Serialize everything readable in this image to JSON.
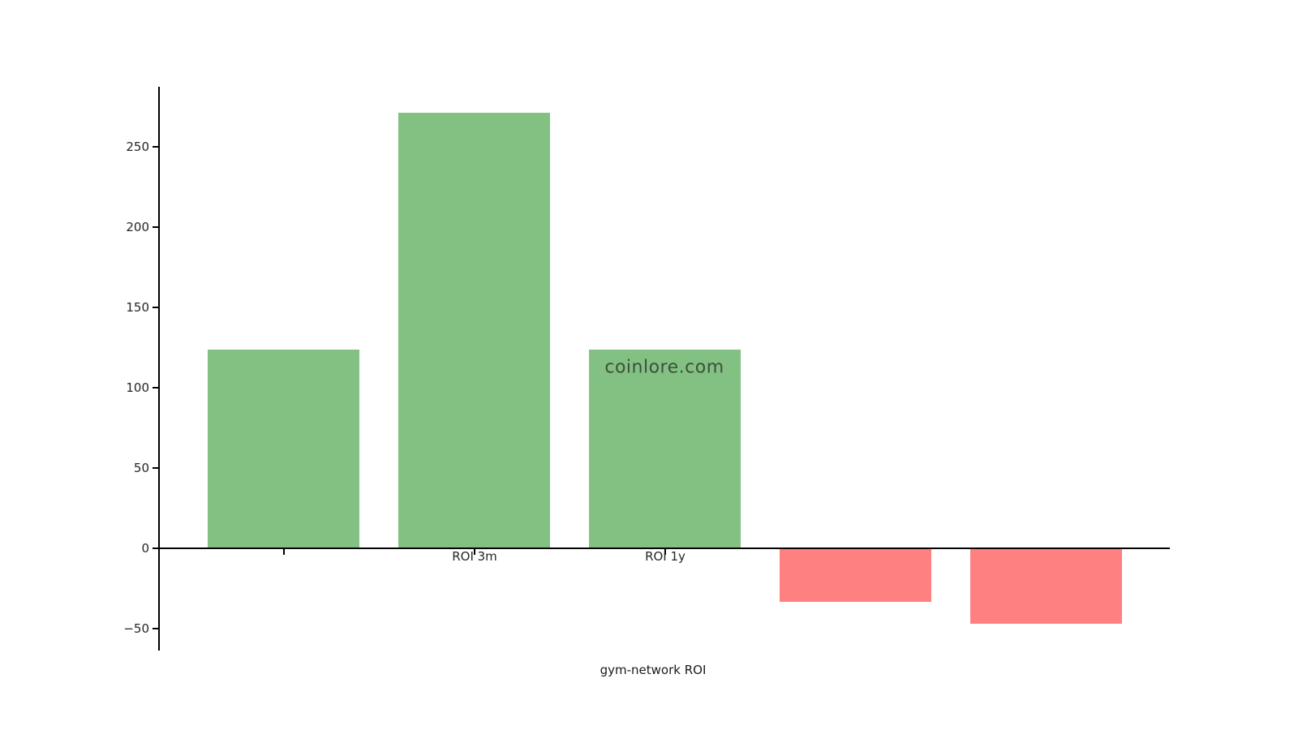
{
  "watermark": "coinlore.com",
  "chart_data": {
    "type": "bar",
    "xlabel": "gym-network ROI",
    "ylabel": "",
    "categories": [
      "",
      "ROI 3m",
      "ROI 1y",
      "",
      ""
    ],
    "values": [
      123.7,
      271.2,
      123.7,
      -33.3,
      -47.0
    ],
    "yticks": [
      250,
      200,
      150,
      100,
      50,
      0,
      -50
    ],
    "ylim": [
      -63.6,
      287.4
    ],
    "grid": false,
    "legend": false,
    "positive_color": "#82c182",
    "negative_color": "#ff8080",
    "axis_color": "#000000",
    "tick_text_color": "#262626",
    "watermark_color": "#3d4f3d"
  }
}
